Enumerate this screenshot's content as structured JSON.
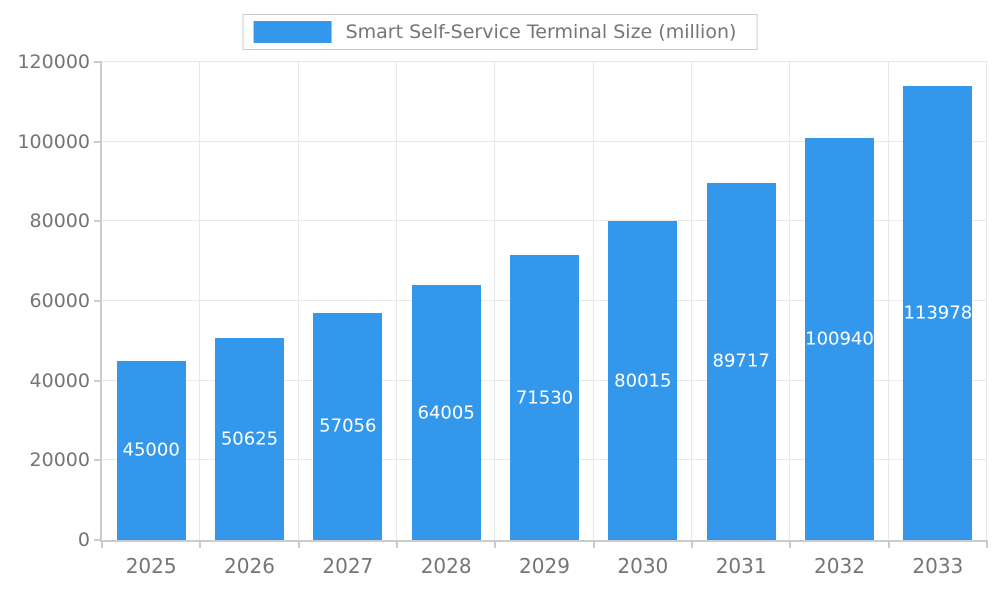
{
  "chart_data": {
    "type": "bar",
    "title": "Smart Self-Service Terminal Size (million)",
    "categories": [
      "2025",
      "2026",
      "2027",
      "2028",
      "2029",
      "2030",
      "2031",
      "2032",
      "2033"
    ],
    "values": [
      45000,
      50625,
      57056,
      64005,
      71530,
      80015,
      89717,
      100940,
      113978
    ],
    "ylim": [
      0,
      120000
    ],
    "ytick_step": 20000,
    "ytick_labels": [
      "0",
      "20000",
      "40000",
      "60000",
      "80000",
      "100000",
      "120000"
    ],
    "grid": true,
    "legend_position": "top",
    "colors": {
      "bar": "#3398EC",
      "bar_label": "#ffffff",
      "axis": "#cccccc",
      "grid": "#e8e8e8",
      "text": "#757575"
    }
  }
}
